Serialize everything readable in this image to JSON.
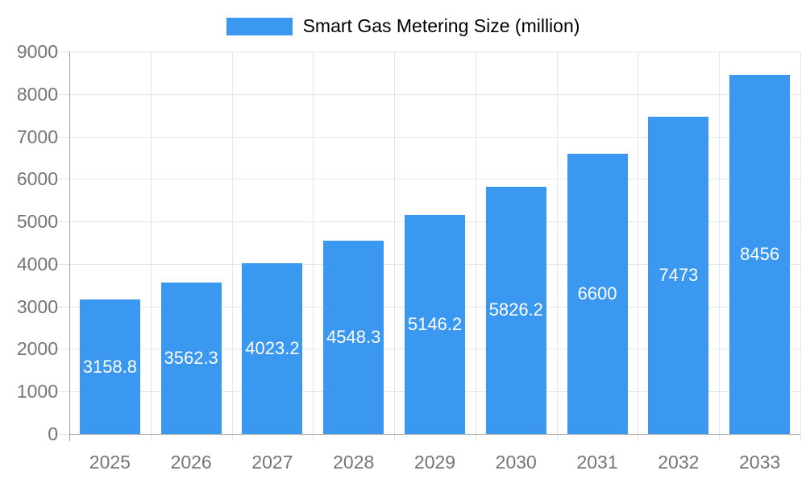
{
  "chart_data": {
    "type": "bar",
    "title": "Smart Gas Metering Size (million)",
    "legend_label": "Smart Gas Metering Size (million)",
    "legend_position": "top-center",
    "categories": [
      "2025",
      "2026",
      "2027",
      "2028",
      "2029",
      "2030",
      "2031",
      "2032",
      "2033"
    ],
    "values": [
      3158.8,
      3562.3,
      4023.2,
      4548.3,
      5146.2,
      5826.2,
      6600,
      7473,
      8456
    ],
    "value_labels": [
      "3158.8",
      "3562.3",
      "4023.2",
      "4548.3",
      "5146.2",
      "5826.2",
      "6600",
      "7473",
      "8456"
    ],
    "xlabel": "",
    "ylabel": "",
    "ylim": [
      0,
      9000
    ],
    "ytick_step": 1000,
    "yticks": [
      "0",
      "1000",
      "2000",
      "3000",
      "4000",
      "5000",
      "6000",
      "7000",
      "8000",
      "9000"
    ],
    "grid": "horizontal-and-vertical",
    "value_labels_placement": "inside-bar-centered",
    "bar_color": "#3b98f0",
    "value_label_color": "#ffffff",
    "axis_label_color": "#757575",
    "gridline_color": "#e6e6e6",
    "axis_line_color": "#9e9e9e",
    "background_color": "#ffffff"
  }
}
